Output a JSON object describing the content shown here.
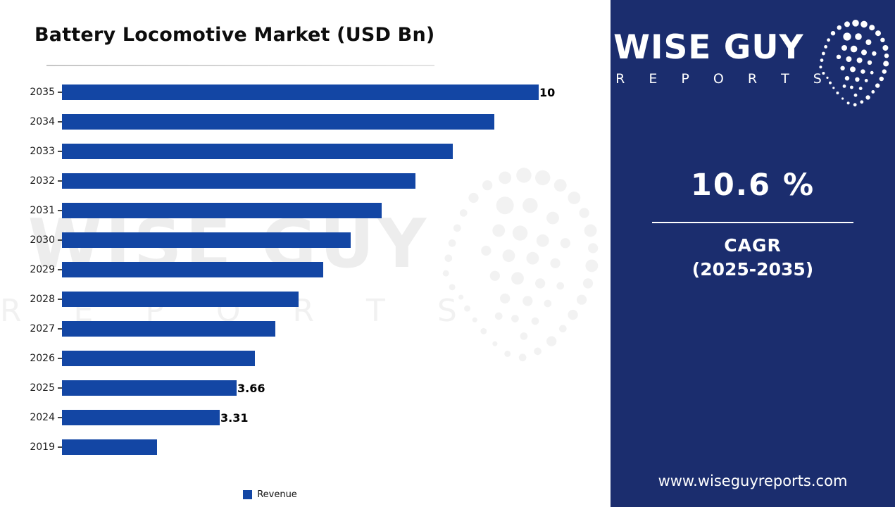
{
  "chart_data": {
    "type": "bar",
    "orientation": "horizontal",
    "title": "Battery Locomotive Market (USD Bn)",
    "xlabel": "",
    "ylabel": "",
    "xlim": [
      0,
      10.6
    ],
    "grid": false,
    "legend_position": "bottom-center",
    "legend_label": "Revenue",
    "bar_color": "#1346a4",
    "categories": [
      "2035",
      "2034",
      "2033",
      "2032",
      "2031",
      "2030",
      "2029",
      "2028",
      "2027",
      "2026",
      "2025",
      "2024",
      "2019"
    ],
    "values": [
      10,
      9.07,
      8.2,
      7.42,
      6.7,
      6.06,
      5.48,
      4.96,
      4.48,
      4.05,
      3.66,
      3.31,
      2.0
    ],
    "data_labels": [
      "10",
      "",
      "",
      "",
      "",
      "",
      "",
      "",
      "",
      "",
      "3.66",
      "3.31",
      ""
    ]
  },
  "watermark": {
    "line1": "WISE GUY",
    "line2": "R E P O R T S"
  },
  "logo": {
    "line1": "WISE GUY",
    "line2": "R E P O R T S"
  },
  "info": {
    "cagr_value": "10.6 %",
    "cagr_label": "CAGR",
    "cagr_range": "(2025-2035)",
    "website": "www.wiseguyreports.com"
  },
  "colors": {
    "bar": "#1346a4",
    "right_panel": "#1b2d6e",
    "panel_text": "#ffffff"
  }
}
